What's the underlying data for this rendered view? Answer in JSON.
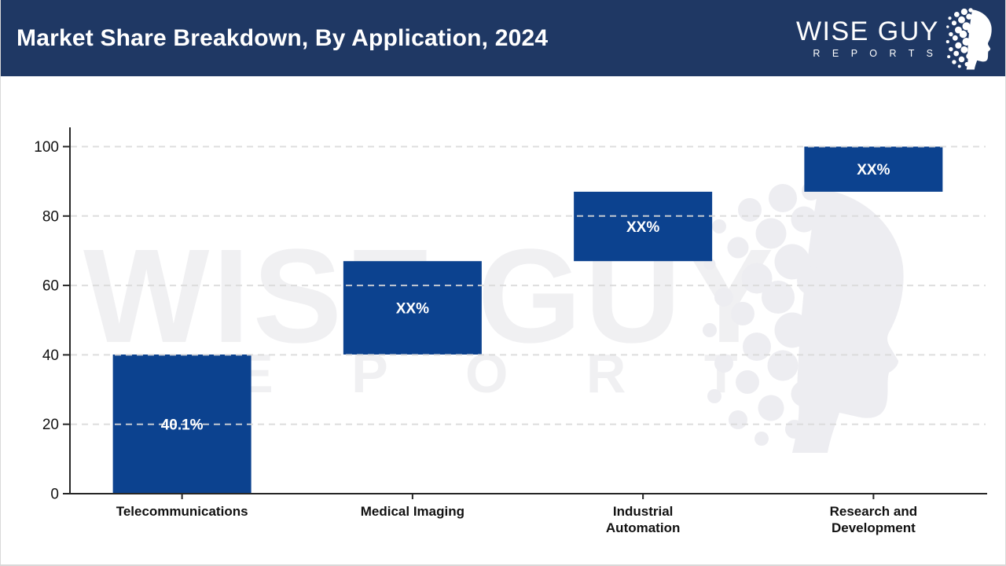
{
  "header": {
    "title": "Market Share Breakdown, By Application, 2024",
    "logo": {
      "name": "WISE GUY",
      "tagline": "R E P O R T S"
    }
  },
  "watermark": {
    "name": "WISE GUY",
    "tagline": "R E P O R T S"
  },
  "colors": {
    "header_bg": "#1f3864",
    "bar": "#0c428f",
    "axis": "#262626",
    "grid": "#d9d9d9",
    "text": "#111111",
    "bar_label": "#ffffff",
    "watermark": "#f0f0f2"
  },
  "chart_data": {
    "type": "bar",
    "variant": "floating segment bars (waterfall-style market share breakdown)",
    "title": "Market Share Breakdown, By Application, 2024",
    "categories": [
      "Telecommunications",
      "Medical Imaging",
      "Industrial\nAutomation",
      "Research and\nDevelopment"
    ],
    "segments": [
      {
        "category": "Telecommunications",
        "from": 0,
        "to": 40.1,
        "label": "40.1%"
      },
      {
        "category": "Medical Imaging",
        "from": 40.1,
        "to": 67,
        "label": "XX%"
      },
      {
        "category": "Industrial Automation",
        "from": 67,
        "to": 87,
        "label": "XX%"
      },
      {
        "category": "Research and Development",
        "from": 87,
        "to": 100,
        "label": "XX%"
      }
    ],
    "xlabel": "",
    "ylabel": "",
    "ylim": [
      0,
      100
    ],
    "yticks": [
      0,
      20,
      40,
      60,
      80,
      100
    ],
    "grid": "horizontal dashed, drawn over bars",
    "legend": "none"
  }
}
